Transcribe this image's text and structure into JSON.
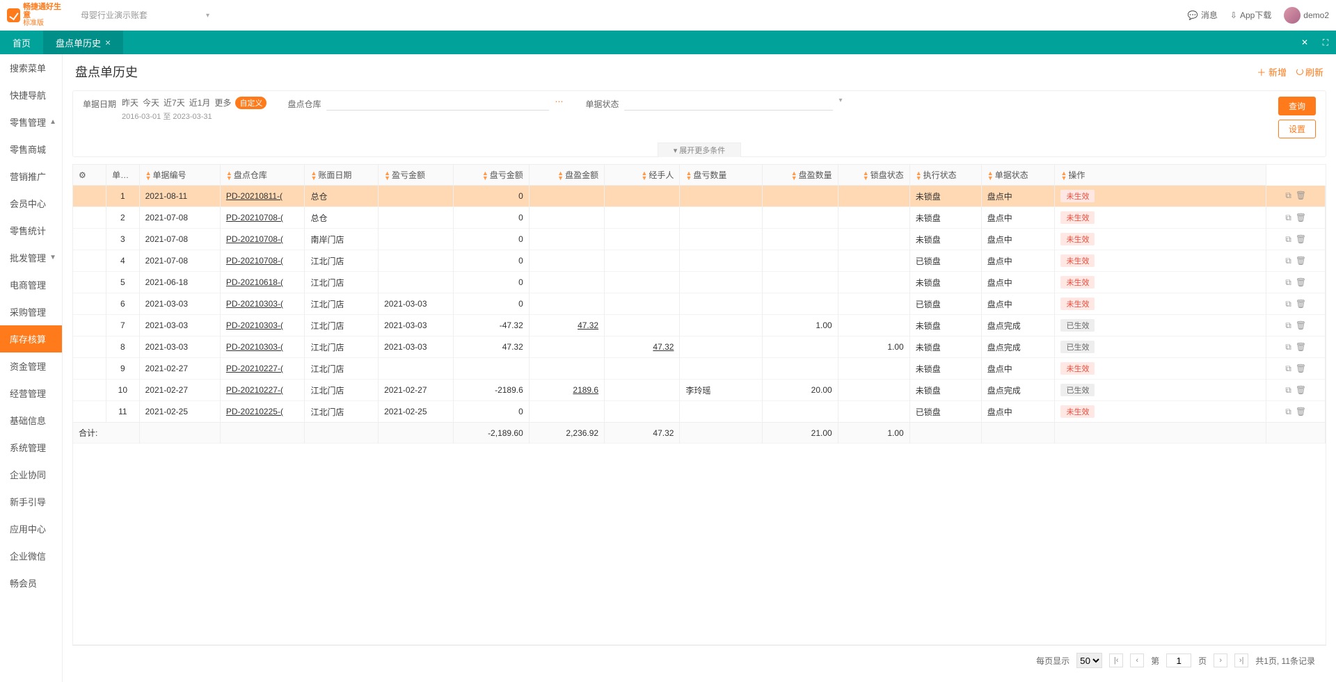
{
  "header": {
    "logo_line1": "畅捷通好生意",
    "logo_line2": "标准版",
    "org_name": "母婴行业演示账套",
    "messages": "消息",
    "app_download": "App下载",
    "user": "demo2"
  },
  "tabs": [
    {
      "label": "首页",
      "closable": false,
      "active": false
    },
    {
      "label": "盘点单历史",
      "closable": true,
      "active": true
    }
  ],
  "nav": [
    {
      "label": "搜索菜单",
      "type": "item"
    },
    {
      "label": "快捷导航",
      "type": "item"
    },
    {
      "label": "零售管理",
      "type": "section",
      "arrow": "▲"
    },
    {
      "label": "零售商城",
      "type": "sub"
    },
    {
      "label": "营销推广",
      "type": "sub"
    },
    {
      "label": "会员中心",
      "type": "sub"
    },
    {
      "label": "零售统计",
      "type": "sub"
    },
    {
      "label": "批发管理",
      "type": "section",
      "arrow": "▼"
    },
    {
      "label": "电商管理",
      "type": "item"
    },
    {
      "label": "采购管理",
      "type": "item"
    },
    {
      "label": "库存核算",
      "type": "item",
      "active": true
    },
    {
      "label": "资金管理",
      "type": "item"
    },
    {
      "label": "经营管理",
      "type": "item"
    },
    {
      "label": "基础信息",
      "type": "item"
    },
    {
      "label": "系统管理",
      "type": "item"
    },
    {
      "label": "企业协同",
      "type": "item"
    },
    {
      "label": "新手引导",
      "type": "item"
    },
    {
      "label": "应用中心",
      "type": "item"
    },
    {
      "label": "企业微信",
      "type": "item"
    },
    {
      "label": "畅会员",
      "type": "item"
    }
  ],
  "page": {
    "title": "盘点单历史",
    "add": "新增",
    "refresh": "刷新"
  },
  "filters": {
    "date_label": "单据日期",
    "quick": [
      "昨天",
      "今天",
      "近7天",
      "近1月",
      "更多"
    ],
    "quick_active": "自定义",
    "date_range": "2016-03-01 至 2023-03-31",
    "warehouse_label": "盘点仓库",
    "status_label": "单据状态",
    "search_btn": "查询",
    "settings_btn": "设置",
    "expand": "展开更多条件"
  },
  "columns": [
    "",
    "单据日期",
    "单据编号",
    "盘点仓库",
    "账面日期",
    "盈亏金额",
    "盘亏金额",
    "盘盈金额",
    "经手人",
    "盘亏数量",
    "盘盈数量",
    "锁盘状态",
    "执行状态",
    "单据状态",
    "操作"
  ],
  "rows": [
    {
      "idx": 1,
      "date": "2021-08-11",
      "no": "PD-20210811-(",
      "wh": "总仓",
      "bdate": "",
      "ykamt": "0",
      "pkamt": "",
      "pyamt": "",
      "handler": "",
      "pkqty": "",
      "pyqty": "",
      "lock": "未锁盘",
      "exec": "盘点中",
      "stat": "未生效",
      "sel": true
    },
    {
      "idx": 2,
      "date": "2021-07-08",
      "no": "PD-20210708-(",
      "wh": "总仓",
      "bdate": "",
      "ykamt": "0",
      "pkamt": "",
      "pyamt": "",
      "handler": "",
      "pkqty": "",
      "pyqty": "",
      "lock": "未锁盘",
      "exec": "盘点中",
      "stat": "未生效"
    },
    {
      "idx": 3,
      "date": "2021-07-08",
      "no": "PD-20210708-(",
      "wh": "南岸门店",
      "bdate": "",
      "ykamt": "0",
      "pkamt": "",
      "pyamt": "",
      "handler": "",
      "pkqty": "",
      "pyqty": "",
      "lock": "未锁盘",
      "exec": "盘点中",
      "stat": "未生效"
    },
    {
      "idx": 4,
      "date": "2021-07-08",
      "no": "PD-20210708-(",
      "wh": "江北门店",
      "bdate": "",
      "ykamt": "0",
      "pkamt": "",
      "pyamt": "",
      "handler": "",
      "pkqty": "",
      "pyqty": "",
      "lock": "已锁盘",
      "exec": "盘点中",
      "stat": "未生效"
    },
    {
      "idx": 5,
      "date": "2021-06-18",
      "no": "PD-20210618-(",
      "wh": "江北门店",
      "bdate": "",
      "ykamt": "0",
      "pkamt": "",
      "pyamt": "",
      "handler": "",
      "pkqty": "",
      "pyqty": "",
      "lock": "未锁盘",
      "exec": "盘点中",
      "stat": "未生效"
    },
    {
      "idx": 6,
      "date": "2021-03-03",
      "no": "PD-20210303-(",
      "wh": "江北门店",
      "bdate": "2021-03-03",
      "ykamt": "0",
      "pkamt": "",
      "pyamt": "",
      "handler": "",
      "pkqty": "",
      "pyqty": "",
      "lock": "已锁盘",
      "exec": "盘点中",
      "stat": "未生效"
    },
    {
      "idx": 7,
      "date": "2021-03-03",
      "no": "PD-20210303-(",
      "wh": "江北门店",
      "bdate": "2021-03-03",
      "ykamt": "-47.32",
      "pkamt": "47.32",
      "pkamt_link": true,
      "pyamt": "",
      "handler": "",
      "pkqty": "1.00",
      "pyqty": "",
      "lock": "未锁盘",
      "exec": "盘点完成",
      "stat": "已生效"
    },
    {
      "idx": 8,
      "date": "2021-03-03",
      "no": "PD-20210303-(",
      "wh": "江北门店",
      "bdate": "2021-03-03",
      "ykamt": "47.32",
      "pkamt": "",
      "pyamt": "47.32",
      "pyamt_link": true,
      "handler": "",
      "pkqty": "",
      "pyqty": "1.00",
      "lock": "未锁盘",
      "exec": "盘点完成",
      "stat": "已生效"
    },
    {
      "idx": 9,
      "date": "2021-02-27",
      "no": "PD-20210227-(",
      "wh": "江北门店",
      "bdate": "",
      "ykamt": "",
      "pkamt": "",
      "pyamt": "",
      "handler": "",
      "pkqty": "",
      "pyqty": "",
      "lock": "未锁盘",
      "exec": "盘点中",
      "stat": "未生效"
    },
    {
      "idx": 10,
      "date": "2021-02-27",
      "no": "PD-20210227-(",
      "wh": "江北门店",
      "bdate": "2021-02-27",
      "ykamt": "-2189.6",
      "pkamt": "2189.6",
      "pkamt_link": true,
      "pyamt": "",
      "handler": "李玲瑶",
      "pkqty": "20.00",
      "pyqty": "",
      "lock": "未锁盘",
      "exec": "盘点完成",
      "stat": "已生效"
    },
    {
      "idx": 11,
      "date": "2021-02-25",
      "no": "PD-20210225-(",
      "wh": "江北门店",
      "bdate": "2021-02-25",
      "ykamt": "0",
      "pkamt": "",
      "pyamt": "",
      "handler": "",
      "pkqty": "",
      "pyqty": "",
      "lock": "已锁盘",
      "exec": "盘点中",
      "stat": "未生效"
    }
  ],
  "totals": {
    "label": "合计:",
    "ykamt": "-2,189.60",
    "pkamt": "2,236.92",
    "pyamt": "47.32",
    "pkqty": "21.00",
    "pyqty": "1.00"
  },
  "pager": {
    "per_page_label": "每页显示",
    "per_page": "50",
    "page_label_pre": "第",
    "page": "1",
    "page_label_post": "页",
    "summary": "共1页, 11条记录"
  },
  "colors": {
    "brand_teal": "#00a29a",
    "brand_orange": "#ff7a1a",
    "badge_red_bg": "#ffe7e3",
    "badge_red_fg": "#e74c3c",
    "badge_grey_bg": "#eeeeee",
    "badge_grey_fg": "#666666",
    "row_selected": "#ffd9b3"
  }
}
